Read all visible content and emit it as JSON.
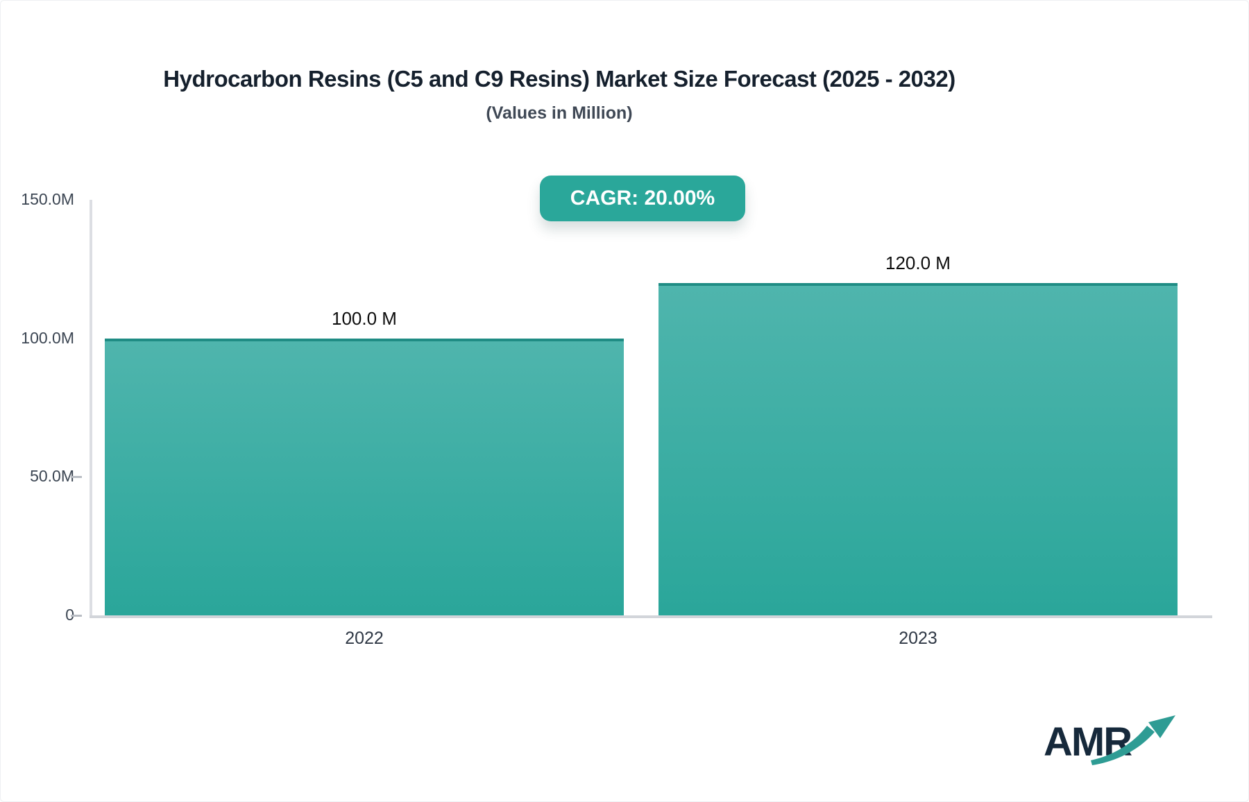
{
  "chart_data": {
    "type": "bar",
    "title": "Hydrocarbon Resins (C5 and C9 Resins) Market Size Forecast (2025 - 2032)",
    "subtitle": "(Values in Million)",
    "cagr_label": "CAGR: 20.00%",
    "categories": [
      "2022",
      "2023"
    ],
    "values": [
      100,
      120
    ],
    "value_labels": [
      "100.0 M",
      "120.0 M"
    ],
    "ylim": [
      0,
      150
    ],
    "yticks": [
      {
        "value": 150,
        "label": "150.0M"
      },
      {
        "value": 100,
        "label": "100.0M"
      },
      {
        "value": 50,
        "label": "50.0M"
      },
      {
        "value": 0,
        "label": "0"
      }
    ],
    "tick_dash_values": [
      50,
      0
    ],
    "grid": false,
    "legend": false,
    "colors": {
      "bar_top": "#4fb5ad",
      "bar_bottom": "#2aa69a",
      "bar_edge": "#1f8c84",
      "badge_bg": "#2aa79a",
      "axis": "#d2d5da",
      "label": "#3b4552",
      "title": "#15202d"
    }
  },
  "logo": {
    "text": "AMR",
    "arrow_icon": "trend-up-arrow",
    "text_color": "#16293b",
    "arrow_color": "#2e9c94"
  }
}
